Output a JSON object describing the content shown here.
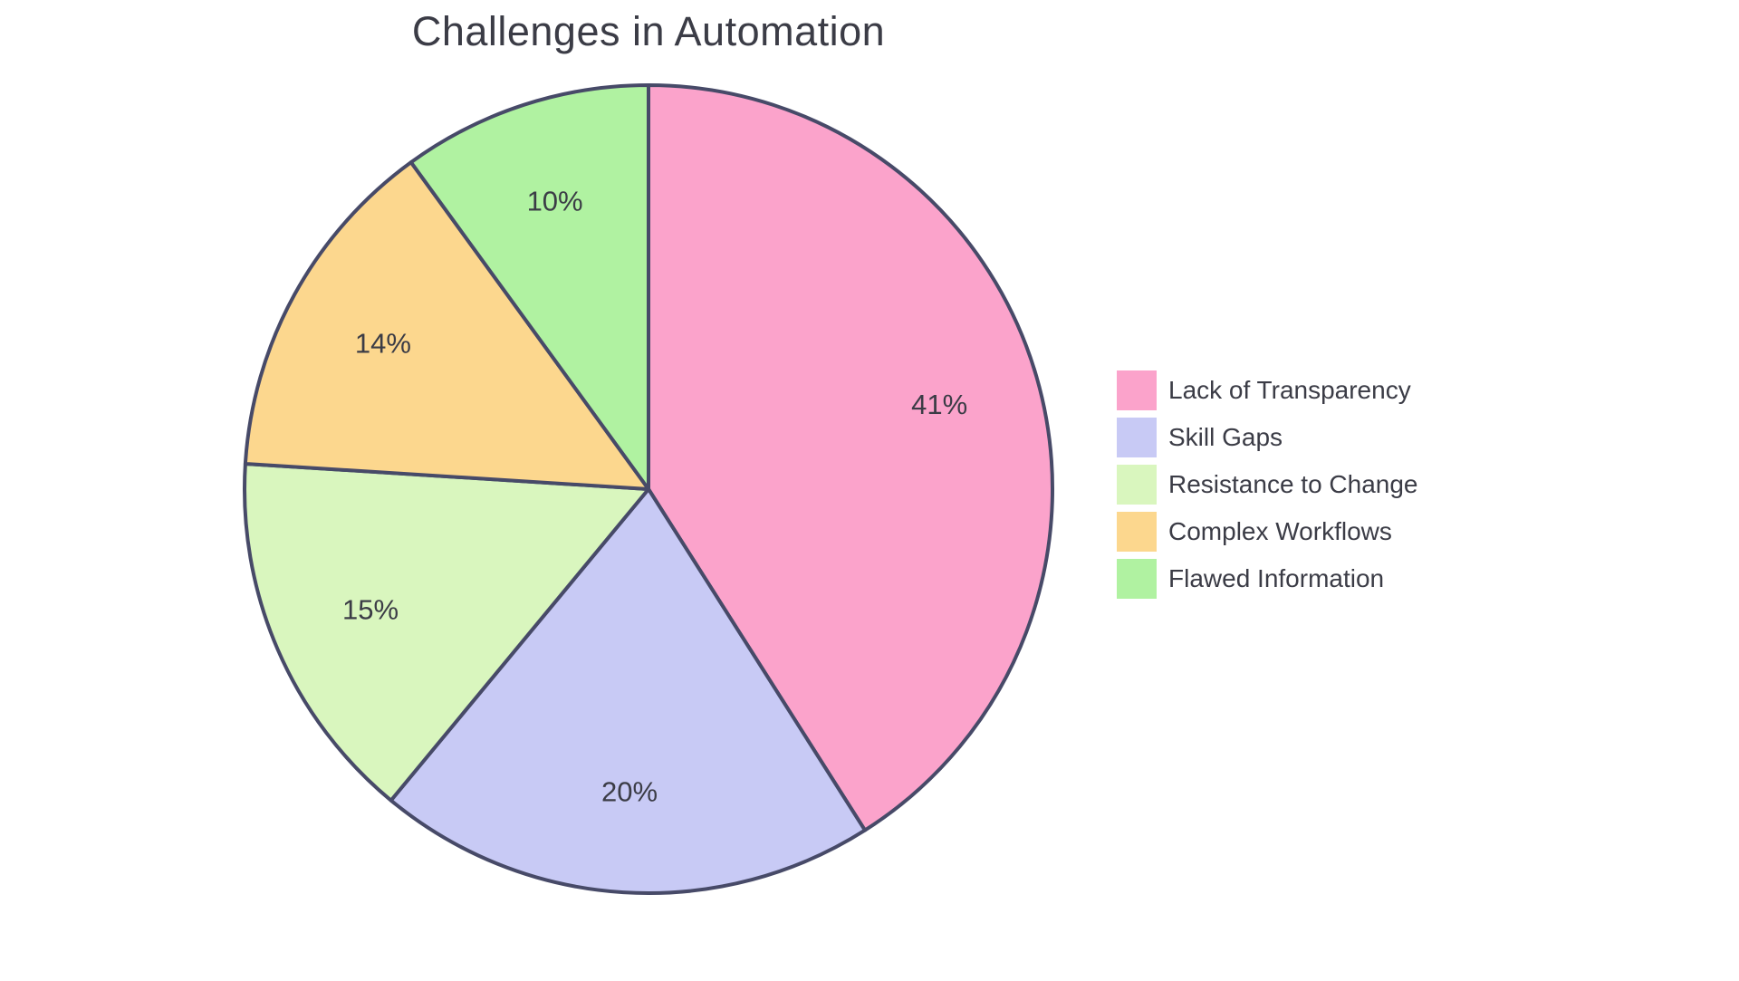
{
  "title": "Challenges in Automation",
  "chart_data": {
    "type": "pie",
    "title": "Challenges in Automation",
    "categories": [
      "Lack of Transparency",
      "Skill Gaps",
      "Resistance to Change",
      "Complex Workflows",
      "Flawed Information"
    ],
    "values": [
      41,
      20,
      15,
      14,
      10
    ],
    "slices": [
      {
        "label": "Lack of Transparency",
        "value": 41,
        "pct_label": "41%",
        "color": "#FBA3CB"
      },
      {
        "label": "Skill Gaps",
        "value": 20,
        "pct_label": "20%",
        "color": "#C8CAF5"
      },
      {
        "label": "Resistance to Change",
        "value": 15,
        "pct_label": "15%",
        "color": "#D9F6BE"
      },
      {
        "label": "Complex Workflows",
        "value": 14,
        "pct_label": "14%",
        "color": "#FCD78E"
      },
      {
        "label": "Flawed Information",
        "value": 10,
        "pct_label": "10%",
        "color": "#B0F2A1"
      }
    ],
    "start_angle_deg": 0,
    "direction": "clockwise",
    "legend_position": "right",
    "wedge_border_color": "#474A68",
    "wedge_border_width": 4,
    "label_color": "#3B3C46",
    "background_color": "#FFFFFF",
    "grid": false
  }
}
